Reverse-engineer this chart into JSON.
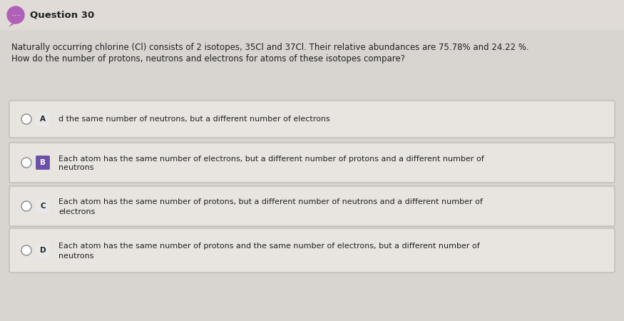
{
  "title": "Question 30",
  "question_text_line1": "Naturally occurring chlorine (Cl) consists of 2 isotopes, 35Cl and 37Cl. Their relative abundances are 75.78% and 24.22 %.",
  "question_text_line2": "How do the number of protons, neutrons and electrons for atoms of these isotopes compare?",
  "options": [
    {
      "label": "A",
      "text_lines": [
        "d the same number of neutrons, but a different number of electrons"
      ],
      "label_bg": "#e8e8e8",
      "label_color": "#222222",
      "label_bold": true
    },
    {
      "label": "B",
      "text_lines": [
        "Each atom has the same number of electrons, but a different number of protons and a different number of",
        "neutrons"
      ],
      "label_bg": "#6b4fa8",
      "label_color": "#ffffff",
      "label_bold": true
    },
    {
      "label": "C",
      "text_lines": [
        "Each atom has the same number of protons, but a different number of neutrons and a different number of",
        "electrons"
      ],
      "label_bg": "#e8e8e8",
      "label_color": "#222222",
      "label_bold": true
    },
    {
      "label": "D",
      "text_lines": [
        "Each atom has the same number of protons and the same number of electrons, but a different number of",
        "neutrons"
      ],
      "label_bg": "#e8e8e8",
      "label_color": "#222222",
      "label_bold": true
    }
  ],
  "bg_color": "#d8d4d0",
  "header_bg": "#e0dbd6",
  "option_box_bg": "#e8e5e0",
  "option_box_border": "#b0aba6",
  "header_circle_color": "#b060b8",
  "text_color": "#222222",
  "font_size_title": 9.5,
  "font_size_question": 8.5,
  "font_size_option": 8.0
}
